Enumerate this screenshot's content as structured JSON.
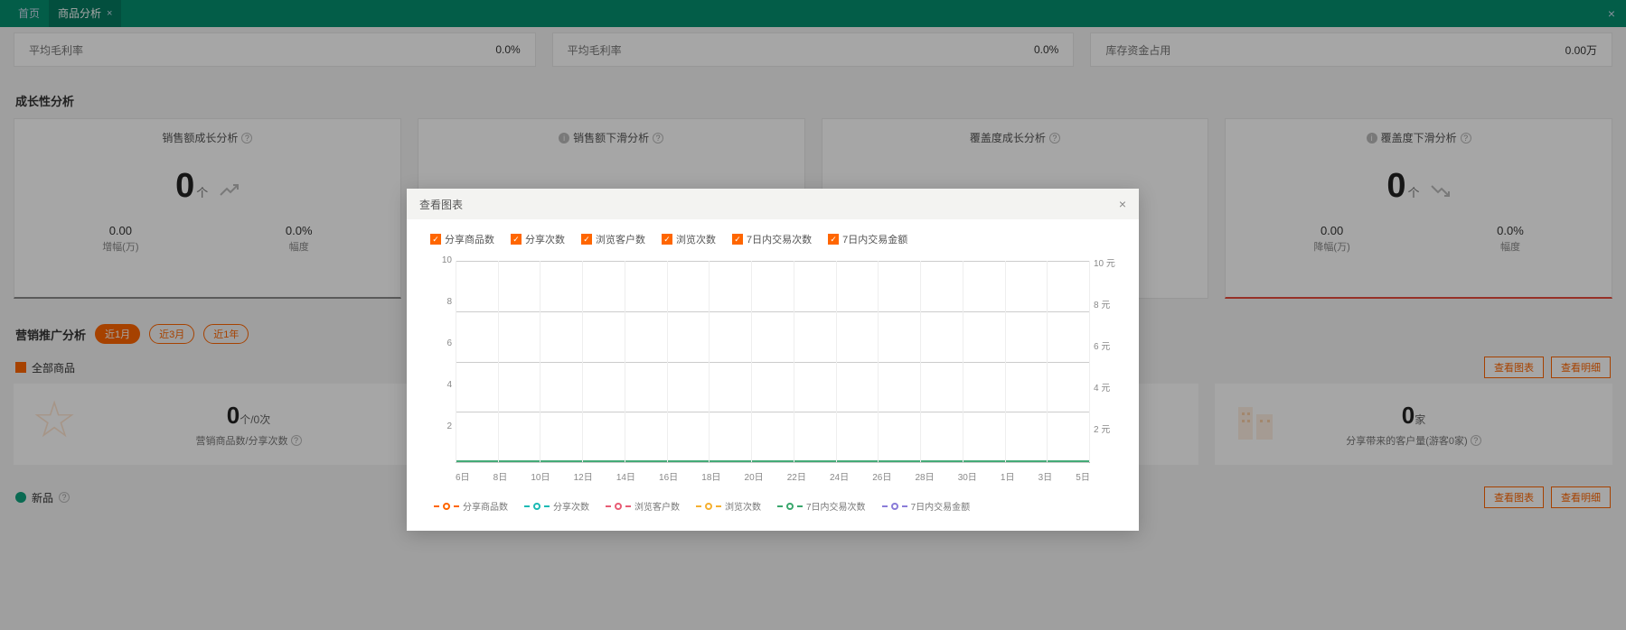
{
  "colors": {
    "topbar": "#068f6f",
    "accent": "#f60",
    "text_muted": "#888"
  },
  "topbar": {
    "tab_home": "首页",
    "tab_active": "商品分析"
  },
  "metrics": [
    {
      "label": "平均毛利率",
      "value": "0.0%"
    },
    {
      "label": "平均毛利率",
      "value": "0.0%"
    },
    {
      "label": "库存资金占用",
      "value": "0.00万"
    }
  ],
  "growth_section_title": "成长性分析",
  "growth_cards": [
    {
      "title": "销售额成长分析",
      "show_info_left": false,
      "num": "0",
      "unit": "个",
      "trend": "up",
      "subs": [
        {
          "v": "0.00",
          "l": "增幅(万)"
        },
        {
          "v": "0.0%",
          "l": "幅度"
        }
      ],
      "border": "gray"
    },
    {
      "title": "销售额下滑分析",
      "show_info_left": true,
      "num": "",
      "unit": "",
      "trend": "",
      "subs": [],
      "border": ""
    },
    {
      "title": "覆盖度成长分析",
      "show_info_left": false,
      "num": "",
      "unit": "",
      "trend": "",
      "subs": [],
      "border": ""
    },
    {
      "title": "覆盖度下滑分析",
      "show_info_left": true,
      "num": "0",
      "unit": "个",
      "trend": "down",
      "subs": [
        {
          "v": "0.00",
          "l": "降幅(万)"
        },
        {
          "v": "0.0%",
          "l": "幅度"
        }
      ],
      "border": "red"
    }
  ],
  "promo": {
    "title": "营销推广分析",
    "pills": [
      "近1月",
      "近3月",
      "近1年"
    ],
    "row_all_label": "全部商品",
    "row_new_label": "新品",
    "btn_chart": "查看图表",
    "btn_detail": "查看明细",
    "card_left_num": "0",
    "card_left_unit": "个/0次",
    "card_left_lbl": "营销商品数/分享次数",
    "card_right_num": "0",
    "card_right_unit": "家",
    "card_right_lbl": "分享带来的客户量(游客0家)"
  },
  "modal": {
    "title": "查看图表",
    "checks": [
      "分享商品数",
      "分享次数",
      "浏览客户数",
      "浏览次数",
      "7日内交易次数",
      "7日内交易金额"
    ],
    "y_left": [
      "10",
      "8",
      "6",
      "4",
      "2",
      ""
    ],
    "y_right": [
      "10 元",
      "8 元",
      "6 元",
      "4 元",
      "2 元",
      ""
    ],
    "x": [
      "6日",
      "8日",
      "10日",
      "12日",
      "14日",
      "16日",
      "18日",
      "20日",
      "22日",
      "24日",
      "26日",
      "28日",
      "30日",
      "1日",
      "3日",
      "5日"
    ],
    "legend": [
      {
        "label": "分享商品数",
        "color": "#f60"
      },
      {
        "label": "分享次数",
        "color": "#1cbab4"
      },
      {
        "label": "浏览客户数",
        "color": "#e85d75"
      },
      {
        "label": "浏览次数",
        "color": "#f5b031"
      },
      {
        "label": "7日内交易次数",
        "color": "#3aa76d"
      },
      {
        "label": "7日内交易金额",
        "color": "#8a7cd8"
      }
    ]
  }
}
